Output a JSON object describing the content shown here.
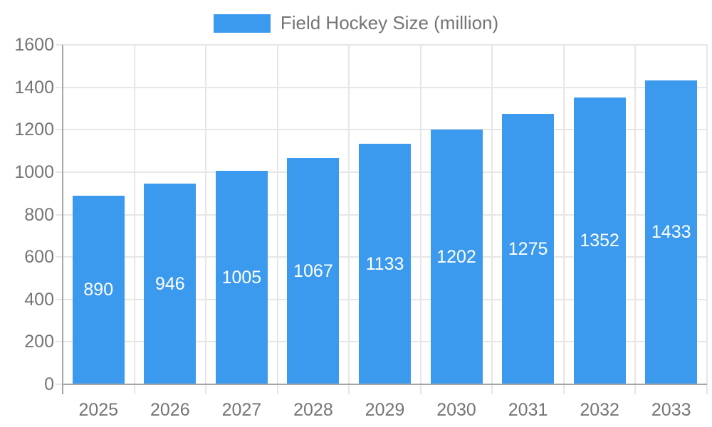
{
  "chart_data": {
    "type": "bar",
    "title": "",
    "xlabel": "",
    "ylabel": "",
    "categories": [
      "2025",
      "2026",
      "2027",
      "2028",
      "2029",
      "2030",
      "2031",
      "2032",
      "2033"
    ],
    "series": [
      {
        "name": "Field Hockey Size (million)",
        "values": [
          890,
          946,
          1005,
          1067,
          1133,
          1202,
          1275,
          1352,
          1433
        ]
      }
    ],
    "value_labels": "inside-center",
    "ylim": [
      0,
      1600
    ],
    "yticks": [
      0,
      200,
      400,
      600,
      800,
      1000,
      1200,
      1400,
      1600
    ],
    "grid": "horizontal-and-vertical",
    "legend_position": "top-center",
    "colors": {
      "bar": "#3c9aee",
      "gridline": "#e6e6e6",
      "axis_line": "#a6a6a6",
      "tick_label_text": "#757575",
      "legend_text": "#757575",
      "value_label_text": "#ffffff",
      "background": "#ffffff"
    }
  }
}
